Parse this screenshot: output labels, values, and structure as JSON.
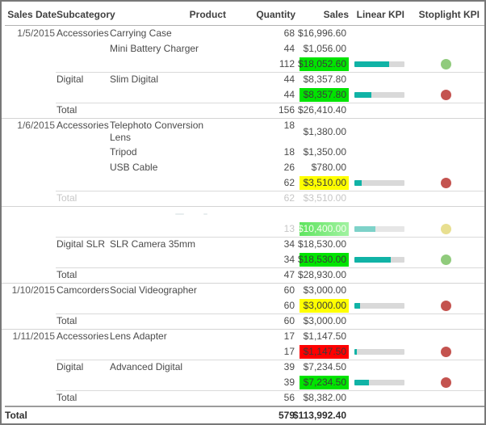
{
  "table": {
    "columns": [
      {
        "key": "date",
        "label": "Sales Date",
        "align": "right"
      },
      {
        "key": "subcategory",
        "label": "Subcategory",
        "align": "left"
      },
      {
        "key": "product",
        "label": "Product",
        "align": "right"
      },
      {
        "key": "quantity",
        "label": "Quantity",
        "align": "right"
      },
      {
        "key": "sales",
        "label": "Sales",
        "align": "right"
      },
      {
        "key": "linear_kpi",
        "label": "Linear KPI",
        "align": "right"
      },
      {
        "key": "stoplight_kpi",
        "label": "Stoplight KPI",
        "align": "right"
      }
    ],
    "rows": [
      {
        "type": "detail",
        "date": "1/5/2015",
        "subcategory": "Accessories",
        "product": "Carrying Case",
        "quantity": "68",
        "sales": "$16,996.60"
      },
      {
        "type": "detail",
        "product": "Mini Battery Charger",
        "quantity": "44",
        "sales": "$1,056.00"
      },
      {
        "type": "subtotal",
        "quantity": "112",
        "sales": "$18,052.60",
        "highlight": "green",
        "bar_pct": 70,
        "stoplight": "green"
      },
      {
        "type": "detail",
        "subcategory": "Digital",
        "product": "Slim Digital",
        "quantity": "44",
        "sales": "$8,357.80",
        "subline": true
      },
      {
        "type": "subtotal",
        "quantity": "44",
        "sales": "$8,357.80",
        "highlight": "green",
        "bar_pct": 34,
        "stoplight": "red"
      },
      {
        "type": "group_total",
        "label": "Total",
        "quantity": "156",
        "sales": "$26,410.40",
        "subline": true
      },
      {
        "type": "detail",
        "date": "1/6/2015",
        "subcategory": "Accessories",
        "product": "Telephoto Conversion Lens",
        "quantity": "18",
        "sales": "$1,380.00",
        "sep": true,
        "tall": true
      },
      {
        "type": "detail",
        "product": "Tripod",
        "quantity": "18",
        "sales": "$1,350.00"
      },
      {
        "type": "detail",
        "product": "USB Cable",
        "quantity": "26",
        "sales": "$780.00"
      },
      {
        "type": "subtotal",
        "quantity": "62",
        "sales": "$3,510.00",
        "highlight": "yellow",
        "bar_pct": 14,
        "stoplight": "red"
      },
      {
        "type": "group_total",
        "label": "Total",
        "quantity": "62",
        "sales": "$3,510.00",
        "subline": true,
        "faded": true
      },
      {
        "type": "ghost",
        "sep": true
      },
      {
        "type": "subtotal",
        "quantity": "13",
        "sales": "$10,400.00",
        "highlight": "green_faded",
        "bar_pct": 42,
        "stoplight": "yellow_faded",
        "faded": true
      },
      {
        "type": "detail",
        "subcategory": "Digital SLR",
        "product": "SLR Camera 35mm",
        "quantity": "34",
        "sales": "$18,530.00",
        "subline": true
      },
      {
        "type": "subtotal",
        "quantity": "34",
        "sales": "$18,530.00",
        "highlight": "green",
        "bar_pct": 73,
        "stoplight": "green"
      },
      {
        "type": "group_total",
        "label": "Total",
        "quantity": "47",
        "sales": "$28,930.00",
        "subline": true
      },
      {
        "type": "detail",
        "date": "1/10/2015",
        "subcategory": "Camcorders",
        "product": "Social Videographer",
        "quantity": "60",
        "sales": "$3,000.00",
        "sep": true
      },
      {
        "type": "subtotal",
        "quantity": "60",
        "sales": "$3,000.00",
        "highlight": "yellow",
        "bar_pct": 12,
        "stoplight": "red"
      },
      {
        "type": "group_total",
        "label": "Total",
        "quantity": "60",
        "sales": "$3,000.00",
        "subline": true
      },
      {
        "type": "detail",
        "date": "1/11/2015",
        "subcategory": "Accessories",
        "product": "Lens Adapter",
        "quantity": "17",
        "sales": "$1,147.50",
        "sep": true
      },
      {
        "type": "subtotal",
        "quantity": "17",
        "sales": "$1,147.50",
        "highlight": "red",
        "bar_pct": 5,
        "stoplight": "red"
      },
      {
        "type": "detail",
        "subcategory": "Digital",
        "product": "Advanced Digital",
        "quantity": "39",
        "sales": "$7,234.50",
        "subline": true
      },
      {
        "type": "subtotal",
        "quantity": "39",
        "sales": "$7,234.50",
        "highlight": "green",
        "bar_pct": 29,
        "stoplight": "red"
      },
      {
        "type": "group_total",
        "label": "Total",
        "quantity": "56",
        "sales": "$8,382.00",
        "subline": true
      }
    ],
    "grand_total": {
      "label": "Total",
      "quantity": "579",
      "sales": "$113,992.40"
    }
  },
  "colors": {
    "highlight": {
      "green": "#00e400",
      "yellow": "#ffff00",
      "red": "#ff0000",
      "green_faded": "linear-gradient(90deg,#5fe45f,#a2f2a2)"
    },
    "stoplight": {
      "green": "#90cb7c",
      "red": "#c4534f",
      "yellow_faded": "#e8df90"
    },
    "bar": {
      "fill": "#10b3a6",
      "fill_faded": "#7ed2c9",
      "bg": "#d9d9d9",
      "bg_faded": "#e6e6e6"
    }
  }
}
